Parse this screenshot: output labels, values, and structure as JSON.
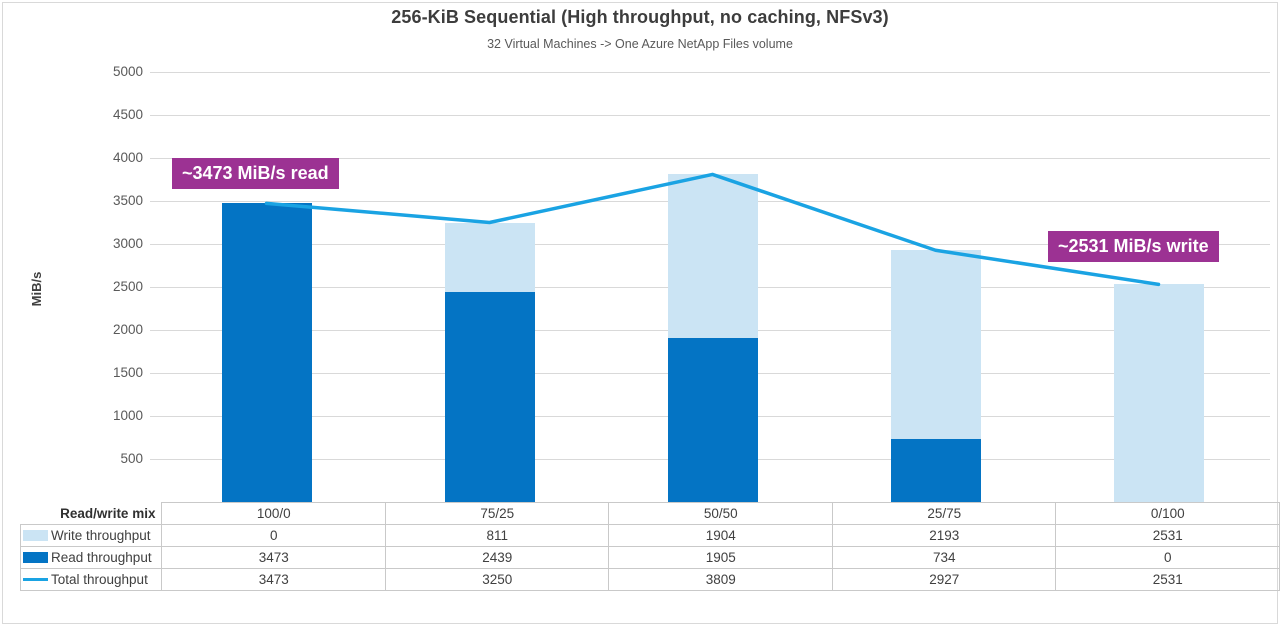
{
  "header": {
    "title": "256-KiB Sequential (High throughput, no caching, NFSv3)",
    "subtitle": "32 Virtual Machines -> One Azure NetApp Files volume"
  },
  "chart_data": {
    "type": "bar",
    "subtype": "stacked-bar-with-line-overlay",
    "title": "256-KiB Sequential (High throughput, no caching, NFSv3)",
    "subtitle": "32 Virtual Machines -> One Azure NetApp Files volume",
    "ylabel": "MiB/s",
    "ylim": [
      0,
      5000
    ],
    "ytick_step": 500,
    "grid": true,
    "legend_position": "table-left",
    "category_label": "Read/write mix",
    "categories": [
      "100/0",
      "75/25",
      "50/50",
      "25/75",
      "0/100"
    ],
    "series": [
      {
        "name": "Write throughput",
        "chart_type": "bar",
        "stack": "top",
        "color": "#CBE4F4",
        "values": [
          0,
          811,
          1904,
          2193,
          2531
        ]
      },
      {
        "name": "Read throughput",
        "chart_type": "bar",
        "stack": "bottom",
        "color": "#0474C4",
        "values": [
          3473,
          2439,
          1905,
          734,
          0
        ]
      },
      {
        "name": "Total throughput",
        "chart_type": "line",
        "color": "#1AA3E3",
        "values": [
          3473,
          3250,
          3809,
          2927,
          2531
        ]
      }
    ],
    "annotations": [
      {
        "text": "~3473 MiB/s read",
        "bg": "#9C3293",
        "text_color": "#FFFFFF"
      },
      {
        "text": "~2531 MiB/s write",
        "bg": "#9C3293",
        "text_color": "#FFFFFF"
      }
    ]
  }
}
